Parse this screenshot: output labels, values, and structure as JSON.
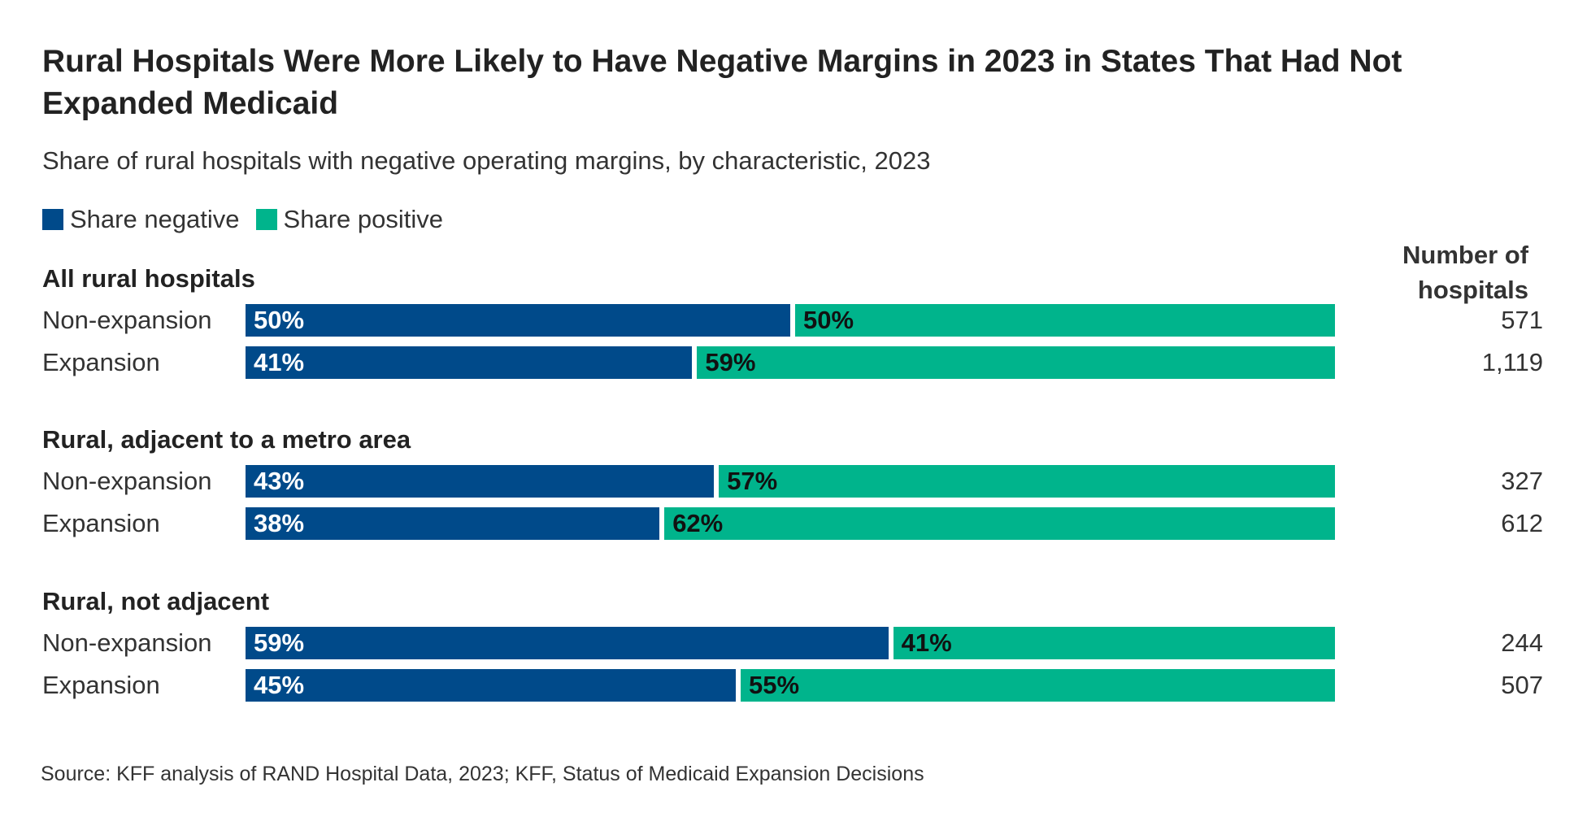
{
  "title": "Rural Hospitals Were More Likely to Have Negative Margins in 2023 in States That Had Not Expanded Medicaid",
  "subtitle": "Share of rural hospitals with negative operating margins, by characteristic, 2023",
  "legend": [
    {
      "label": "Share negative",
      "color": "#004a8a"
    },
    {
      "label": "Share positive",
      "color": "#00b48c"
    }
  ],
  "column_header": "Number of hospitals",
  "source": "Source: KFF analysis of RAND Hospital Data, 2023; KFF, Status of Medicaid Expansion Decisions",
  "chart_data": {
    "type": "bar",
    "orientation": "horizontal",
    "stacked": true,
    "xlim": [
      0,
      100
    ],
    "groups": [
      {
        "name": "All rural hospitals",
        "rows": [
          {
            "label": "Non-expansion",
            "negative": 50,
            "positive": 50,
            "negative_label": "50%",
            "positive_label": "50%",
            "count": "571"
          },
          {
            "label": "Expansion",
            "negative": 41,
            "positive": 59,
            "negative_label": "41%",
            "positive_label": "59%",
            "count": "1,119"
          }
        ]
      },
      {
        "name": "Rural, adjacent to a metro area",
        "rows": [
          {
            "label": "Non-expansion",
            "negative": 43,
            "positive": 57,
            "negative_label": "43%",
            "positive_label": "57%",
            "count": "327"
          },
          {
            "label": "Expansion",
            "negative": 38,
            "positive": 62,
            "negative_label": "38%",
            "positive_label": "62%",
            "count": "612"
          }
        ]
      },
      {
        "name": "Rural, not adjacent",
        "rows": [
          {
            "label": "Non-expansion",
            "negative": 59,
            "positive": 41,
            "negative_label": "59%",
            "positive_label": "41%",
            "count": "244"
          },
          {
            "label": "Expansion",
            "negative": 45,
            "positive": 55,
            "negative_label": "45%",
            "positive_label": "55%",
            "count": "507"
          }
        ]
      }
    ],
    "series": [
      {
        "name": "Share negative",
        "key": "negative",
        "color": "#004a8a"
      },
      {
        "name": "Share positive",
        "key": "positive",
        "color": "#00b48c"
      }
    ]
  }
}
